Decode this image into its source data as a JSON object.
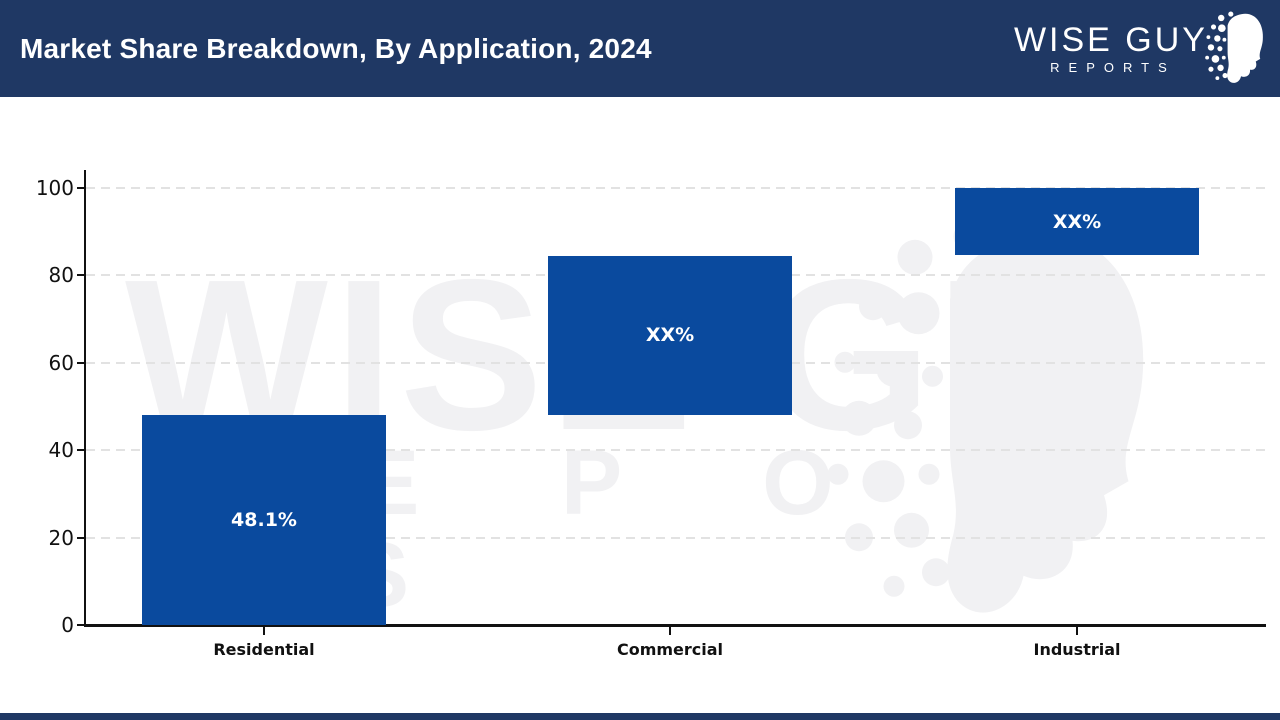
{
  "header": {
    "title": "Market Share Breakdown, By Application, 2024",
    "logo": {
      "line1": "WISE GUY",
      "line2": "REPORTS",
      "head_icon": "dotted-face-profile"
    }
  },
  "watermark": {
    "line1": "WISE GU",
    "line2": "R E P O R T S",
    "head_icon": "dotted-face-profile"
  },
  "colors": {
    "header_bg": "#1f3864",
    "footer_bg": "#1f3864",
    "bar": "#0a4a9e",
    "bar_label": "#ffffff",
    "axis": "#111111",
    "gridline": "#e2e2e2",
    "watermark": "#f1f1f3"
  },
  "chart_data": {
    "type": "bar",
    "subtype": "floating-waterfall",
    "title": "Market Share Breakdown, By Application, 2024",
    "xlabel": "",
    "ylabel": "",
    "categories": [
      "Residential",
      "Commercial",
      "Industrial"
    ],
    "bars": [
      {
        "category": "Residential",
        "from": 0,
        "to": 48.1,
        "label": "48.1%"
      },
      {
        "category": "Commercial",
        "from": 48.1,
        "to": 84.4,
        "label": "XX%"
      },
      {
        "category": "Industrial",
        "from": 84.6,
        "to": 100,
        "label": "XX%"
      }
    ],
    "yticks": [
      0,
      20,
      40,
      60,
      80,
      100
    ],
    "ylim": [
      0,
      100
    ],
    "grid": "horizontal-dashed",
    "legend": "none"
  }
}
